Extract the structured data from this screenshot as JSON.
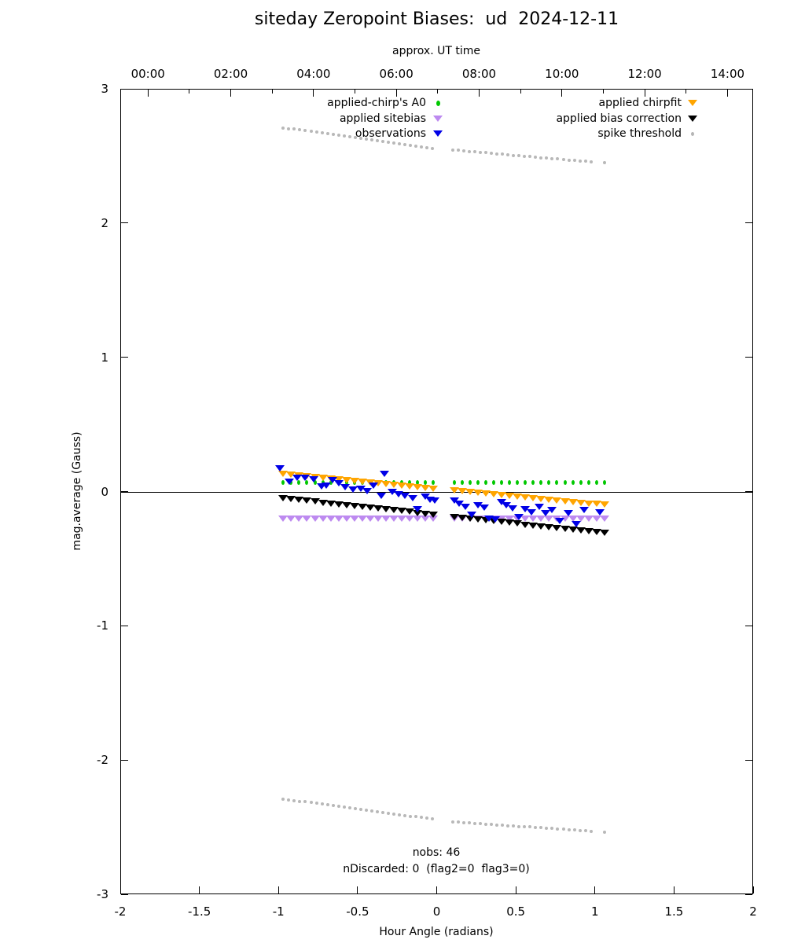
{
  "title": "siteday Zeropoint Biases:  ud  2024-12-11",
  "axes": {
    "top": {
      "label": "approx. UT time",
      "ticks": [
        {
          "label": "00:00",
          "hour": 0
        },
        {
          "label": "02:00",
          "hour": 2
        },
        {
          "label": "04:00",
          "hour": 4
        },
        {
          "label": "06:00",
          "hour": 6
        },
        {
          "label": "08:00",
          "hour": 8
        },
        {
          "label": "10:00",
          "hour": 10
        },
        {
          "label": "12:00",
          "hour": 12
        },
        {
          "label": "14:00",
          "hour": 14
        }
      ],
      "minor_hours": [
        1,
        3,
        5,
        7,
        9,
        11,
        13
      ]
    },
    "bottom": {
      "label": "Hour Angle (radians)",
      "ticks": [
        {
          "label": "-2",
          "value": -2
        },
        {
          "label": "-1.5",
          "value": -1.5
        },
        {
          "label": "-1",
          "value": -1
        },
        {
          "label": "-0.5",
          "value": -0.5
        },
        {
          "label": "0",
          "value": 0
        },
        {
          "label": "0.5",
          "value": 0.5
        },
        {
          "label": "1",
          "value": 1
        },
        {
          "label": "1.5",
          "value": 1.5
        },
        {
          "label": "2",
          "value": 2
        }
      ]
    },
    "left": {
      "label": "mag.average (Gauss)",
      "ticks": [
        {
          "label": "3",
          "value": 3
        },
        {
          "label": "2",
          "value": 2
        },
        {
          "label": "1",
          "value": 1
        },
        {
          "label": "0",
          "value": 0
        },
        {
          "label": "-1",
          "value": -1
        },
        {
          "label": "-2",
          "value": -2
        },
        {
          "label": "-3",
          "value": -3
        }
      ]
    }
  },
  "legend": {
    "items": [
      {
        "label": "applied-chirp's A0",
        "col": 0,
        "row": 0,
        "marker": {
          "shape": "dot",
          "color": "#00c800",
          "w": 5,
          "h": 7
        }
      },
      {
        "label": "applied sitebias",
        "col": 0,
        "row": 1,
        "marker": {
          "shape": "tri",
          "color": "#bd8af0"
        }
      },
      {
        "label": "observations",
        "col": 0,
        "row": 2,
        "marker": {
          "shape": "tri",
          "color": "#0000e6"
        }
      },
      {
        "label": "applied chirpfit",
        "col": 1,
        "row": 0,
        "marker": {
          "shape": "tri",
          "color": "#ffa500"
        }
      },
      {
        "label": "applied bias correction",
        "col": 1,
        "row": 1,
        "marker": {
          "shape": "tri",
          "color": "#000000"
        }
      },
      {
        "label": "spike threshold",
        "col": 1,
        "row": 2,
        "marker": {
          "shape": "dot",
          "color": "#b5b5b5",
          "w": 4,
          "h": 5
        }
      }
    ]
  },
  "chart_data": {
    "type": "scatter",
    "title": "siteday Zeropoint Biases:  ud  2024-12-11",
    "xlabel": "Hour Angle (radians)",
    "ylabel": "mag.average (Gauss)",
    "x2label": "approx. UT time",
    "xlim": [
      -2,
      2
    ],
    "ylim": [
      -3,
      3
    ],
    "grid": false,
    "legend_position": "top-inside",
    "annotations": {
      "nobs": "nobs: 46",
      "ndiscarded": "nDiscarded: 0  (flag2=0  flag3=0)"
    },
    "series": [
      {
        "name": "spike-threshold-upper",
        "label": "spike threshold",
        "marker": {
          "shape": "dot",
          "color": "#b8b8b8",
          "w": 4,
          "h": 4
        },
        "x": [
          -0.97,
          -0.935,
          -0.9,
          -0.865,
          -0.83,
          -0.795,
          -0.76,
          -0.725,
          -0.69,
          -0.655,
          -0.62,
          -0.585,
          -0.55,
          -0.515,
          -0.48,
          -0.445,
          -0.41,
          -0.375,
          -0.34,
          -0.305,
          -0.27,
          -0.235,
          -0.2,
          -0.165,
          -0.13,
          -0.095,
          -0.06,
          -0.025,
          0.1,
          0.135,
          0.17,
          0.205,
          0.24,
          0.275,
          0.31,
          0.345,
          0.38,
          0.415,
          0.45,
          0.485,
          0.52,
          0.555,
          0.59,
          0.625,
          0.66,
          0.695,
          0.73,
          0.765,
          0.8,
          0.835,
          0.87,
          0.905,
          0.94,
          0.975,
          1.06
        ],
        "y": [
          2.71,
          2.704,
          2.699,
          2.693,
          2.687,
          2.681,
          2.676,
          2.67,
          2.664,
          2.658,
          2.653,
          2.647,
          2.641,
          2.635,
          2.63,
          2.624,
          2.618,
          2.612,
          2.607,
          2.601,
          2.595,
          2.589,
          2.584,
          2.578,
          2.572,
          2.566,
          2.561,
          2.555,
          2.545,
          2.541,
          2.538,
          2.534,
          2.531,
          2.527,
          2.523,
          2.52,
          2.516,
          2.513,
          2.509,
          2.505,
          2.502,
          2.498,
          2.495,
          2.491,
          2.487,
          2.484,
          2.48,
          2.477,
          2.473,
          2.469,
          2.466,
          2.462,
          2.459,
          2.455,
          2.452
        ]
      },
      {
        "name": "spike-threshold-lower",
        "label": "spike threshold",
        "marker": {
          "shape": "dot",
          "color": "#b8b8b8",
          "w": 4,
          "h": 4
        },
        "x": [
          -0.97,
          -0.935,
          -0.9,
          -0.865,
          -0.83,
          -0.795,
          -0.76,
          -0.725,
          -0.69,
          -0.655,
          -0.62,
          -0.585,
          -0.55,
          -0.515,
          -0.48,
          -0.445,
          -0.41,
          -0.375,
          -0.34,
          -0.305,
          -0.27,
          -0.235,
          -0.2,
          -0.165,
          -0.13,
          -0.095,
          -0.06,
          -0.025,
          0.1,
          0.135,
          0.17,
          0.205,
          0.24,
          0.275,
          0.31,
          0.345,
          0.38,
          0.415,
          0.45,
          0.485,
          0.52,
          0.555,
          0.59,
          0.625,
          0.66,
          0.695,
          0.73,
          0.765,
          0.8,
          0.835,
          0.87,
          0.905,
          0.94,
          0.975,
          1.06
        ],
        "y": [
          -2.29,
          -2.296,
          -2.301,
          -2.307,
          -2.312,
          -2.318,
          -2.323,
          -2.329,
          -2.334,
          -2.34,
          -2.346,
          -2.351,
          -2.357,
          -2.362,
          -2.368,
          -2.373,
          -2.379,
          -2.384,
          -2.39,
          -2.396,
          -2.401,
          -2.407,
          -2.412,
          -2.418,
          -2.423,
          -2.429,
          -2.434,
          -2.44,
          -2.46,
          -2.463,
          -2.466,
          -2.468,
          -2.471,
          -2.474,
          -2.477,
          -2.48,
          -2.482,
          -2.485,
          -2.488,
          -2.491,
          -2.494,
          -2.496,
          -2.499,
          -2.502,
          -2.505,
          -2.508,
          -2.51,
          -2.513,
          -2.516,
          -2.519,
          -2.522,
          -2.524,
          -2.527,
          -2.53,
          -2.535
        ]
      },
      {
        "name": "applied-chirps-a0",
        "label": "applied-chirp's A0",
        "marker": {
          "shape": "dot",
          "color": "#00c800",
          "w": 4,
          "h": 6
        },
        "x": [
          -0.97,
          -0.92,
          -0.87,
          -0.82,
          -0.77,
          -0.72,
          -0.67,
          -0.62,
          -0.57,
          -0.52,
          -0.47,
          -0.42,
          -0.37,
          -0.32,
          -0.27,
          -0.22,
          -0.17,
          -0.12,
          -0.07,
          -0.02,
          0.11,
          0.16,
          0.21,
          0.26,
          0.31,
          0.36,
          0.41,
          0.46,
          0.51,
          0.56,
          0.61,
          0.66,
          0.71,
          0.76,
          0.81,
          0.86,
          0.91,
          0.96,
          1.01,
          1.06
        ],
        "y": [
          0.065,
          0.065,
          0.065,
          0.065,
          0.065,
          0.065,
          0.065,
          0.065,
          0.065,
          0.065,
          0.065,
          0.065,
          0.065,
          0.065,
          0.065,
          0.065,
          0.065,
          0.065,
          0.065,
          0.065,
          0.065,
          0.065,
          0.065,
          0.065,
          0.065,
          0.065,
          0.065,
          0.065,
          0.065,
          0.065,
          0.065,
          0.065,
          0.065,
          0.065,
          0.065,
          0.065,
          0.065,
          0.065,
          0.065,
          0.065
        ]
      },
      {
        "name": "applied-chirpfit",
        "label": "applied chirpfit",
        "marker": {
          "shape": "tri",
          "color": "#ffa500"
        },
        "x": [
          -0.97,
          -0.92,
          -0.87,
          -0.82,
          -0.77,
          -0.72,
          -0.67,
          -0.62,
          -0.57,
          -0.52,
          -0.47,
          -0.42,
          -0.37,
          -0.32,
          -0.27,
          -0.22,
          -0.17,
          -0.12,
          -0.07,
          -0.02,
          0.11,
          0.16,
          0.21,
          0.26,
          0.31,
          0.36,
          0.41,
          0.46,
          0.51,
          0.56,
          0.61,
          0.66,
          0.71,
          0.76,
          0.81,
          0.86,
          0.91,
          0.96,
          1.01,
          1.06
        ],
        "y": [
          0.13,
          0.124,
          0.119,
          0.113,
          0.107,
          0.102,
          0.096,
          0.09,
          0.085,
          0.079,
          0.074,
          0.068,
          0.062,
          0.057,
          0.051,
          0.045,
          0.04,
          0.034,
          0.028,
          0.023,
          0.008,
          0.002,
          -0.003,
          -0.009,
          -0.015,
          -0.02,
          -0.026,
          -0.032,
          -0.037,
          -0.043,
          -0.048,
          -0.054,
          -0.06,
          -0.065,
          -0.071,
          -0.077,
          -0.082,
          -0.088,
          -0.093,
          -0.099
        ]
      },
      {
        "name": "applied-sitebias",
        "label": "applied sitebias",
        "marker": {
          "shape": "tri",
          "color": "#bd8af0"
        },
        "x": [
          -0.97,
          -0.92,
          -0.87,
          -0.82,
          -0.77,
          -0.72,
          -0.67,
          -0.62,
          -0.57,
          -0.52,
          -0.47,
          -0.42,
          -0.37,
          -0.32,
          -0.27,
          -0.22,
          -0.17,
          -0.12,
          -0.07,
          -0.02,
          0.11,
          0.16,
          0.21,
          0.26,
          0.31,
          0.36,
          0.41,
          0.46,
          0.51,
          0.56,
          0.61,
          0.66,
          0.71,
          0.76,
          0.81,
          0.86,
          0.91,
          0.96,
          1.01,
          1.06
        ],
        "y": [
          -0.2,
          -0.2,
          -0.2,
          -0.2,
          -0.2,
          -0.2,
          -0.2,
          -0.2,
          -0.2,
          -0.2,
          -0.2,
          -0.2,
          -0.2,
          -0.2,
          -0.2,
          -0.2,
          -0.2,
          -0.2,
          -0.2,
          -0.2,
          -0.2,
          -0.2,
          -0.2,
          -0.2,
          -0.2,
          -0.2,
          -0.2,
          -0.2,
          -0.2,
          -0.2,
          -0.2,
          -0.2,
          -0.2,
          -0.2,
          -0.2,
          -0.2,
          -0.2,
          -0.2,
          -0.2,
          -0.2
        ]
      },
      {
        "name": "applied-bias-correction",
        "label": "applied bias correction",
        "marker": {
          "shape": "tri",
          "color": "#000000"
        },
        "x": [
          -0.97,
          -0.92,
          -0.87,
          -0.82,
          -0.77,
          -0.72,
          -0.67,
          -0.62,
          -0.57,
          -0.52,
          -0.47,
          -0.42,
          -0.37,
          -0.32,
          -0.27,
          -0.22,
          -0.17,
          -0.12,
          -0.07,
          -0.02,
          0.11,
          0.16,
          0.21,
          0.26,
          0.31,
          0.36,
          0.41,
          0.46,
          0.51,
          0.56,
          0.61,
          0.66,
          0.71,
          0.76,
          0.81,
          0.86,
          0.91,
          0.96,
          1.01,
          1.06
        ],
        "y": [
          -0.05,
          -0.056,
          -0.063,
          -0.069,
          -0.076,
          -0.082,
          -0.088,
          -0.095,
          -0.101,
          -0.108,
          -0.114,
          -0.12,
          -0.127,
          -0.133,
          -0.14,
          -0.146,
          -0.152,
          -0.159,
          -0.165,
          -0.172,
          -0.188,
          -0.195,
          -0.201,
          -0.207,
          -0.214,
          -0.22,
          -0.227,
          -0.233,
          -0.239,
          -0.246,
          -0.252,
          -0.259,
          -0.265,
          -0.271,
          -0.278,
          -0.284,
          -0.291,
          -0.297,
          -0.303,
          -0.31
        ]
      },
      {
        "name": "observations",
        "label": "observations",
        "marker": {
          "shape": "tri",
          "color": "#0000e6"
        },
        "x": [
          -0.99,
          -0.93,
          -0.88,
          -0.83,
          -0.78,
          -0.73,
          -0.7,
          -0.66,
          -0.62,
          -0.58,
          -0.53,
          -0.48,
          -0.44,
          -0.4,
          -0.35,
          -0.33,
          -0.28,
          -0.24,
          -0.2,
          -0.15,
          -0.12,
          -0.07,
          -0.04,
          -0.01,
          0.11,
          0.14,
          0.18,
          0.22,
          0.26,
          0.3,
          0.33,
          0.37,
          0.41,
          0.44,
          0.48,
          0.52,
          0.56,
          0.6,
          0.65,
          0.69,
          0.73,
          0.78,
          0.83,
          0.88,
          0.93,
          1.03
        ],
        "y": [
          0.175,
          0.075,
          0.105,
          0.1,
          0.09,
          0.04,
          0.045,
          0.085,
          0.06,
          0.03,
          0.015,
          0.02,
          0.005,
          0.045,
          -0.03,
          0.13,
          0.0,
          -0.02,
          -0.03,
          -0.05,
          -0.13,
          -0.04,
          -0.06,
          -0.07,
          -0.07,
          -0.09,
          -0.115,
          -0.17,
          -0.1,
          -0.12,
          -0.2,
          -0.21,
          -0.08,
          -0.105,
          -0.125,
          -0.19,
          -0.13,
          -0.155,
          -0.115,
          -0.16,
          -0.14,
          -0.22,
          -0.16,
          -0.245,
          -0.14,
          -0.155
        ]
      }
    ]
  }
}
